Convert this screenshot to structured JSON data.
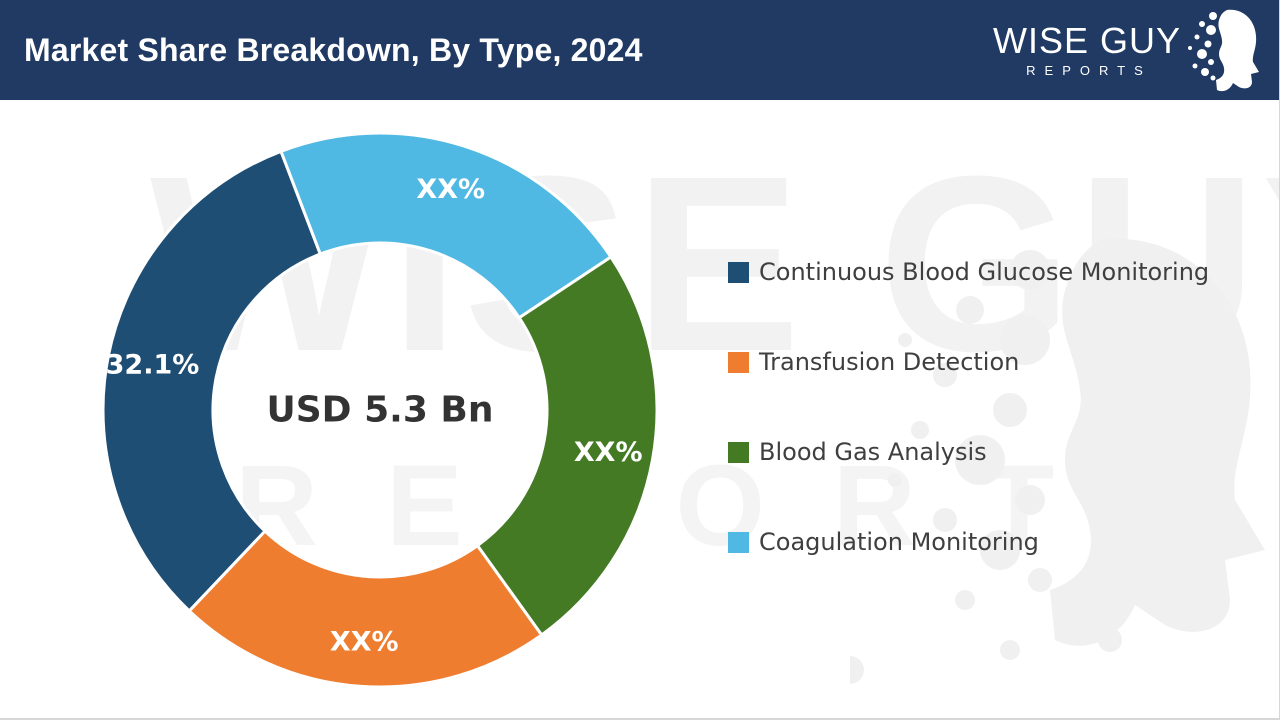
{
  "header": {
    "title": "Market Share Breakdown, By Type, 2024",
    "logo": {
      "line1": "WISE GUY",
      "line2": "REPORTS"
    }
  },
  "watermark": {
    "line1": "WISE GUY",
    "line2": "REPORTS"
  },
  "chart_data": {
    "type": "pie",
    "subtype": "donut",
    "title": "Market Share Breakdown, By Type, 2024",
    "center_label": "USD 5.3 Bn",
    "start_angle_deg": 223.5,
    "legend_position": "right",
    "slices": [
      {
        "name": "Continuous Blood Glucose Monitoring",
        "value": 32.1,
        "display": "32.1%",
        "color": "#1f4e74"
      },
      {
        "name": "Coagulation Monitoring",
        "value": 21.5,
        "display": "XX%",
        "color": "#4fb8e3"
      },
      {
        "name": "Blood Gas Analysis",
        "value": 24.4,
        "display": "XX%",
        "color": "#447a24"
      },
      {
        "name": "Transfusion Detection",
        "value": 22.0,
        "display": "XX%",
        "color": "#ee7d2f"
      }
    ]
  },
  "legend": {
    "items": [
      {
        "label": "Continuous Blood Glucose Monitoring",
        "color": "#1f4e74"
      },
      {
        "label": "Transfusion Detection",
        "color": "#ee7d2f"
      },
      {
        "label": "Blood Gas Analysis",
        "color": "#447a24"
      },
      {
        "label": "Coagulation Monitoring",
        "color": "#4fb8e3"
      }
    ]
  },
  "colors": {
    "header_bg": "#203a64",
    "center_text": "#333333",
    "legend_text": "#3f3f3f",
    "watermark": "#f2f2f2"
  }
}
